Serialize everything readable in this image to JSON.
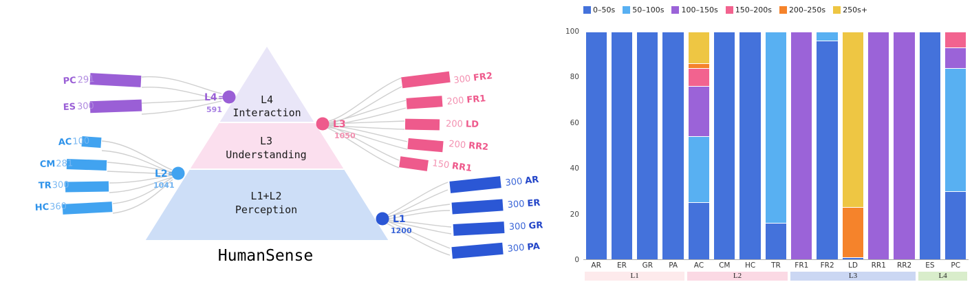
{
  "pyramid": {
    "title": "HumanSense",
    "eq": "=",
    "levels": [
      {
        "line1": "L4",
        "line2": "Interaction"
      },
      {
        "line1": "L3",
        "line2": "Understanding"
      },
      {
        "line1": "L1+L2",
        "line2": "Perception"
      }
    ],
    "nodes": {
      "L4": {
        "label": "L4",
        "value": "591"
      },
      "L2": {
        "label": "L2",
        "value": "1041"
      },
      "L3": {
        "label": "L3",
        "value": "1050"
      },
      "L1": {
        "label": "L1",
        "value": "1200"
      }
    },
    "left_purple": [
      {
        "label": "PC",
        "value": "291"
      },
      {
        "label": "ES",
        "value": "300"
      }
    ],
    "left_blue": [
      {
        "label": "AC",
        "value": "100"
      },
      {
        "label": "CM",
        "value": "281"
      },
      {
        "label": "TR",
        "value": "300"
      },
      {
        "label": "HC",
        "value": "360"
      }
    ],
    "right_pink": [
      {
        "value": "300",
        "label": "FR2"
      },
      {
        "value": "200",
        "label": "FR1"
      },
      {
        "value": "200",
        "label": "LD"
      },
      {
        "value": "200",
        "label": "RR2"
      },
      {
        "value": "150",
        "label": "RR1"
      }
    ],
    "right_blue": [
      {
        "value": "300",
        "label": "AR"
      },
      {
        "value": "300",
        "label": "ER"
      },
      {
        "value": "300",
        "label": "GR"
      },
      {
        "value": "300",
        "label": "PA"
      }
    ],
    "colors": {
      "purple": "#9a5fd6",
      "blue": "#41a3f0",
      "pink": "#ee5a8c",
      "darkblue": "#2b57d5"
    }
  },
  "chart_data": {
    "type": "bar",
    "stacked": true,
    "title": "",
    "xlabel": "",
    "ylabel": "",
    "ylim": [
      0,
      100
    ],
    "yticks": [
      0,
      20,
      40,
      60,
      80,
      100
    ],
    "legend_position": "top",
    "grid": false,
    "categories": [
      "AR",
      "ER",
      "GR",
      "PA",
      "AC",
      "CM",
      "HC",
      "TR",
      "FR1",
      "FR2",
      "LD",
      "RR1",
      "RR2",
      "ES",
      "PC"
    ],
    "series": [
      {
        "name": "0–50s",
        "color": "#4472db",
        "values": [
          100,
          100,
          100,
          100,
          25,
          100,
          100,
          16,
          0,
          96,
          1,
          0,
          0,
          100,
          30
        ]
      },
      {
        "name": "50–100s",
        "color": "#58b0f2",
        "values": [
          0,
          0,
          0,
          0,
          29,
          0,
          0,
          84,
          0,
          4,
          0,
          0,
          0,
          0,
          54
        ]
      },
      {
        "name": "100–150s",
        "color": "#9b63d8",
        "values": [
          0,
          0,
          0,
          0,
          22,
          0,
          0,
          0,
          100,
          0,
          0,
          100,
          100,
          0,
          9
        ]
      },
      {
        "name": "150–200s",
        "color": "#f2638f",
        "values": [
          0,
          0,
          0,
          0,
          8,
          0,
          0,
          0,
          0,
          0,
          0,
          0,
          0,
          0,
          7
        ]
      },
      {
        "name": "200–250s",
        "color": "#f5832b",
        "values": [
          0,
          0,
          0,
          0,
          2,
          0,
          0,
          0,
          0,
          0,
          22,
          0,
          0,
          0,
          0
        ]
      },
      {
        "name": "250s+",
        "color": "#eec643",
        "values": [
          0,
          0,
          0,
          0,
          14,
          0,
          0,
          0,
          0,
          0,
          77,
          0,
          0,
          0,
          0
        ]
      }
    ],
    "groups": [
      {
        "label": "L1",
        "span": [
          "AR",
          "PA"
        ],
        "color": "#fdeaec"
      },
      {
        "label": "L2",
        "span": [
          "AC",
          "TR"
        ],
        "color": "#fbd9e4"
      },
      {
        "label": "L3",
        "span": [
          "FR1",
          "RR2"
        ],
        "color": "#cbd7f3"
      },
      {
        "label": "L4",
        "span": [
          "ES",
          "PC"
        ],
        "color": "#d9edcb"
      }
    ]
  }
}
